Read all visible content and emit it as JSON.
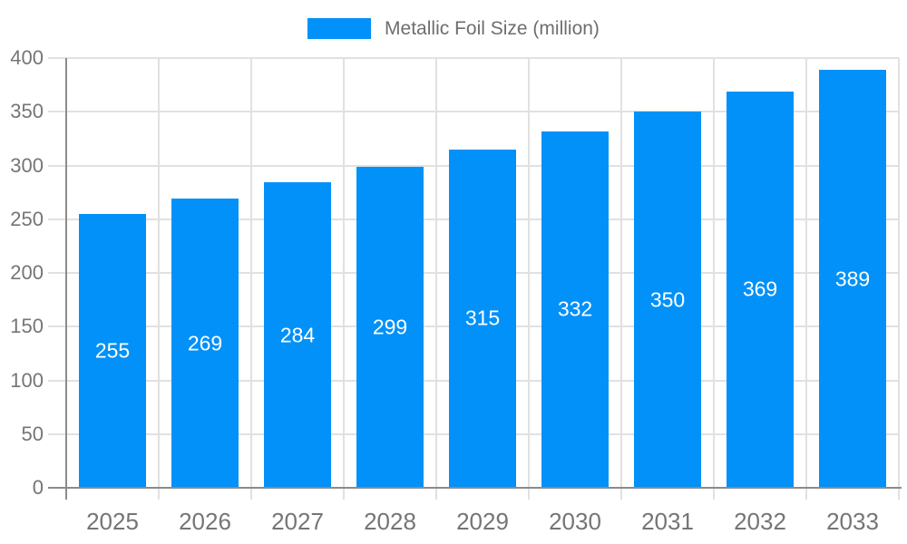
{
  "legend": {
    "label": "Metallic Foil Size (million)"
  },
  "colors": {
    "bar": "#0291f8",
    "grid": "#e1e1e1",
    "axis": "#8b8b8b",
    "tick_text": "#757575",
    "legend_text": "#6e6e6e",
    "value_label": "#ffffff",
    "background": "#ffffff"
  },
  "chart_data": {
    "type": "bar",
    "title": "",
    "categories": [
      "2025",
      "2026",
      "2027",
      "2028",
      "2029",
      "2030",
      "2031",
      "2032",
      "2033"
    ],
    "series": [
      {
        "name": "Metallic Foil Size (million)",
        "values": [
          255,
          269,
          284,
          299,
          315,
          332,
          350,
          369,
          389
        ]
      }
    ],
    "xlabel": "",
    "ylabel": "",
    "ylim": [
      0,
      400
    ],
    "yticks": [
      0,
      50,
      100,
      150,
      200,
      250,
      300,
      350,
      400
    ],
    "grid": true,
    "legend_position": "top",
    "value_labels": "inside-center"
  }
}
